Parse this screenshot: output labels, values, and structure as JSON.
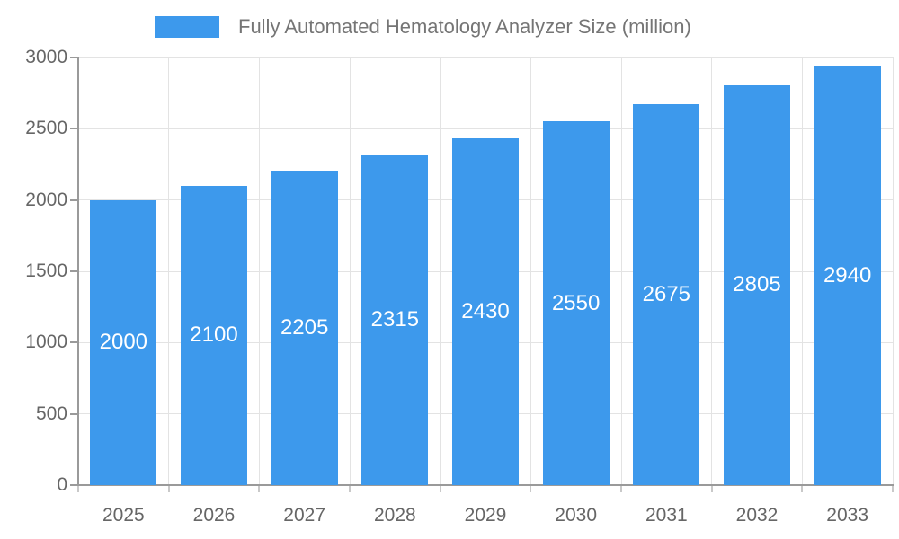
{
  "chart_data": {
    "type": "bar",
    "title": "Fully Automated Hematology Analyzer Size (million)",
    "categories": [
      "2025",
      "2026",
      "2027",
      "2028",
      "2029",
      "2030",
      "2031",
      "2032",
      "2033"
    ],
    "values": [
      2000,
      2100,
      2205,
      2315,
      2430,
      2550,
      2675,
      2805,
      2940
    ],
    "bar_value_labels": [
      "2000",
      "2100",
      "2205",
      "2315",
      "2430",
      "2550",
      "2675",
      "2805",
      "2940"
    ],
    "xlabel": "",
    "ylabel": "",
    "ylim": [
      0,
      3000
    ],
    "ytick_step": 500,
    "ytick_labels": [
      "0",
      "500",
      "1000",
      "1500",
      "2000",
      "2500",
      "3000"
    ],
    "grid": true,
    "legend_position": "top",
    "colors": {
      "bar": "#3d99ec",
      "bar_label_text": "#ffffff",
      "axis_text": "#666666",
      "legend_text": "#757575",
      "gridline": "#e3e3e3",
      "axis_line": "#9a9a9a"
    }
  },
  "legend": {
    "series_label": "Fully Automated Hematology Analyzer Size (million)"
  }
}
